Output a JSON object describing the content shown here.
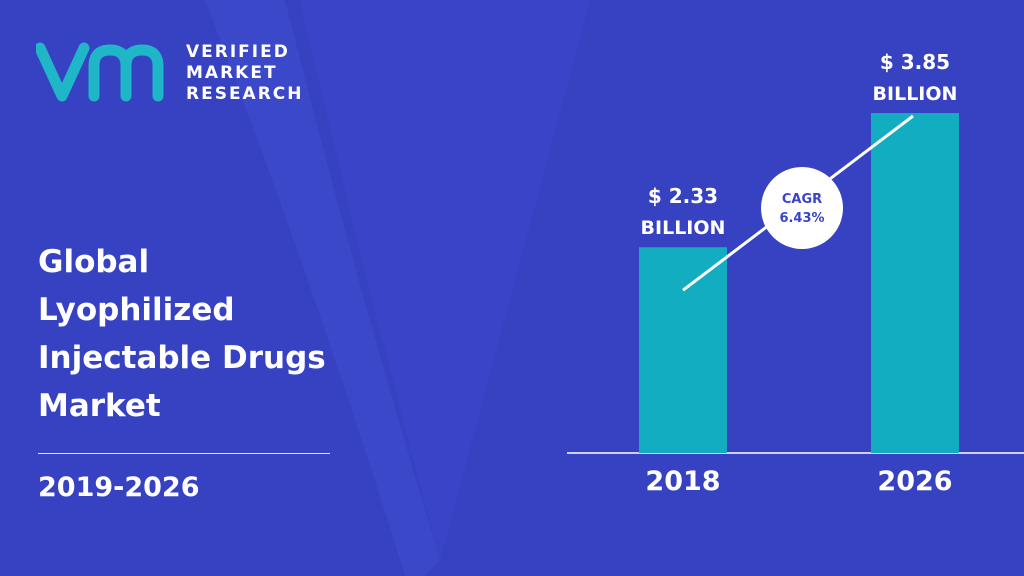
{
  "brand": {
    "line1": "VERIFIED",
    "line2": "MARKET",
    "line3": "RESEARCH",
    "mark_color": "#1fb6c8"
  },
  "title_lines": [
    "Global",
    "Lyophilized",
    "Injectable Drugs",
    "Market"
  ],
  "period": "2019-2026",
  "colors": {
    "background": "#3a44c8",
    "background_shape": "#3541bd",
    "bar": "#12adc1",
    "text": "#ffffff"
  },
  "chart_data": {
    "type": "bar",
    "categories": [
      "2018",
      "2026"
    ],
    "values": [
      2.33,
      3.85
    ],
    "value_labels": [
      [
        "$ 2.33",
        "BILLION"
      ],
      [
        "$ 3.85",
        "BILLION"
      ]
    ],
    "unit": "BILLION",
    "cagr": {
      "label": "CAGR",
      "value": "6.43%"
    },
    "ylim": [
      0,
      3.85
    ],
    "grid": false,
    "legend": "none"
  }
}
